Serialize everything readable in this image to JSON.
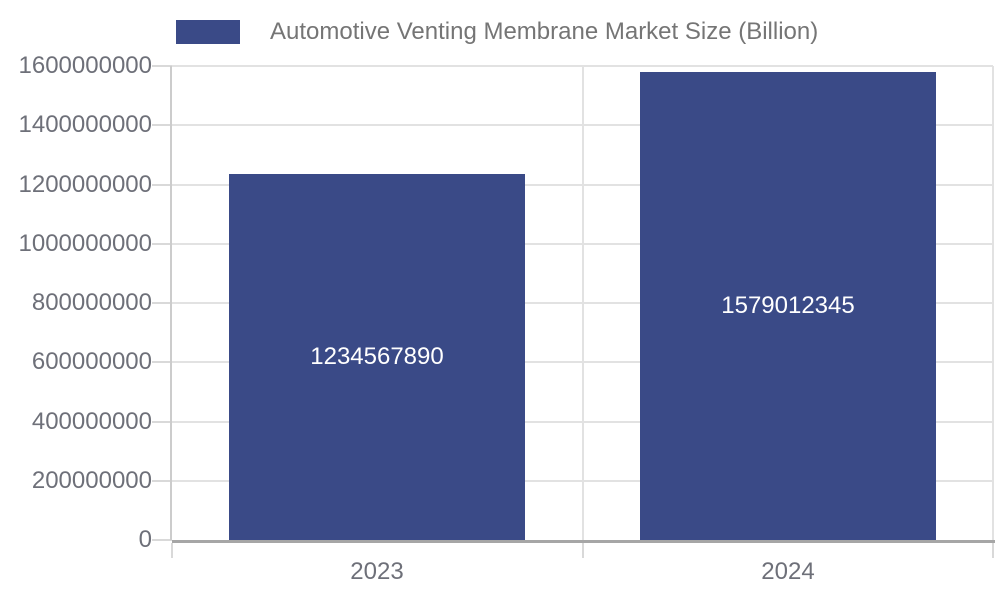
{
  "chart_data": {
    "type": "bar",
    "title": "Automotive Venting Membrane Market Size (Billion)",
    "legend": [
      {
        "label": "Automotive Venting Membrane Market Size (Billion)"
      }
    ],
    "legend_position": "top-left",
    "categories": [
      "2023",
      "2024"
    ],
    "values": [
      1234567890,
      1579012345
    ],
    "bar_value_labels": [
      "1234567890",
      "1579012345"
    ],
    "xlabel": "",
    "ylabel": "",
    "ylim": [
      0,
      1600000000
    ],
    "ytick_interval": 200000000,
    "ytick_labels": [
      "0",
      "200000000",
      "400000000",
      "600000000",
      "800000000",
      "1000000000",
      "1200000000",
      "1400000000",
      "1600000000"
    ],
    "grid": "on",
    "colors": {
      "bar": "#3A4A87",
      "legend_text": "#757575",
      "axis_label": "#6E7079",
      "bar_value_text": "#FFFFFF",
      "gridline": "#E2E2E2",
      "tick": "#D9D9D9",
      "y_spine": "#CCCCCC",
      "x_axis_line": "#A6A6A6",
      "background": "#FFFFFF"
    }
  }
}
